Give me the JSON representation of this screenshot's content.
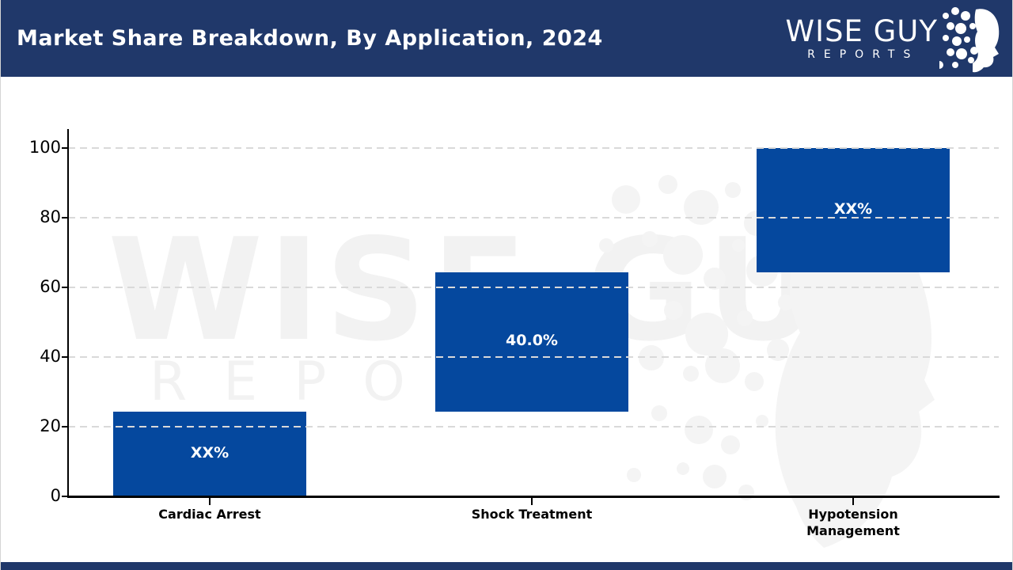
{
  "header": {
    "title": "Market Share Breakdown, By Application, 2024",
    "logo": {
      "line1": "WISE GUY",
      "line2": "REPORTS"
    },
    "bg_color": "#20386a"
  },
  "watermark": {
    "line1": "WISE GUY",
    "line2": "REPORTS"
  },
  "chart_data": {
    "type": "bar",
    "subtype": "stacked-waterfall-segments",
    "title": "Market Share Breakdown, By Application, 2024",
    "categories": [
      "Cardiac Arrest",
      "Shock Treatment",
      "Hypotension Management"
    ],
    "bars": [
      {
        "category": "Cardiac Arrest",
        "start": 0,
        "end": 24.3,
        "label": "XX%"
      },
      {
        "category": "Shock Treatment",
        "start": 24.3,
        "end": 64.3,
        "label": "40.0%"
      },
      {
        "category": "Hypotension Management",
        "start": 64.3,
        "end": 100,
        "label": "XX%"
      }
    ],
    "yticks": [
      0,
      20,
      40,
      60,
      80,
      100
    ],
    "ylim": [
      0,
      105
    ],
    "xlabel": "",
    "ylabel": "",
    "legend": "none",
    "grid": "dashed-horizontal",
    "grid_color": "#d9d9d9",
    "bar_color": "#05489e",
    "bar_label_color": "#ffffff",
    "axis_color": "#000000"
  }
}
